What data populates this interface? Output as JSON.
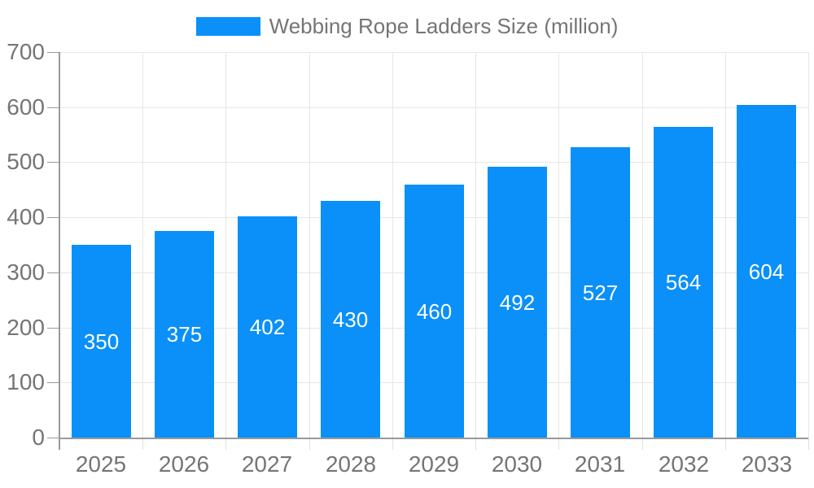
{
  "chart_data": {
    "type": "bar",
    "title": "Webbing Rope Ladders Size (million)",
    "categories": [
      "2025",
      "2026",
      "2027",
      "2028",
      "2029",
      "2030",
      "2031",
      "2032",
      "2033"
    ],
    "values": [
      350,
      375,
      402,
      430,
      460,
      492,
      527,
      564,
      604
    ],
    "xlabel": "",
    "ylabel": "",
    "ylim": [
      0,
      700
    ],
    "ytick_interval": 100,
    "grid": true,
    "legend_position": "top-center",
    "value_labels": "centered-inside-bars",
    "colors": {
      "bar": "#0a90f8",
      "grid": "#e6e6e6",
      "axis": "#999999",
      "x_tick": "#e0e0e0",
      "tick_label": "#757575",
      "value_label": "#ffffff",
      "legend_text": "#757575"
    }
  },
  "legend": {
    "series_label": "Webbing Rope Ladders Size (million)"
  }
}
